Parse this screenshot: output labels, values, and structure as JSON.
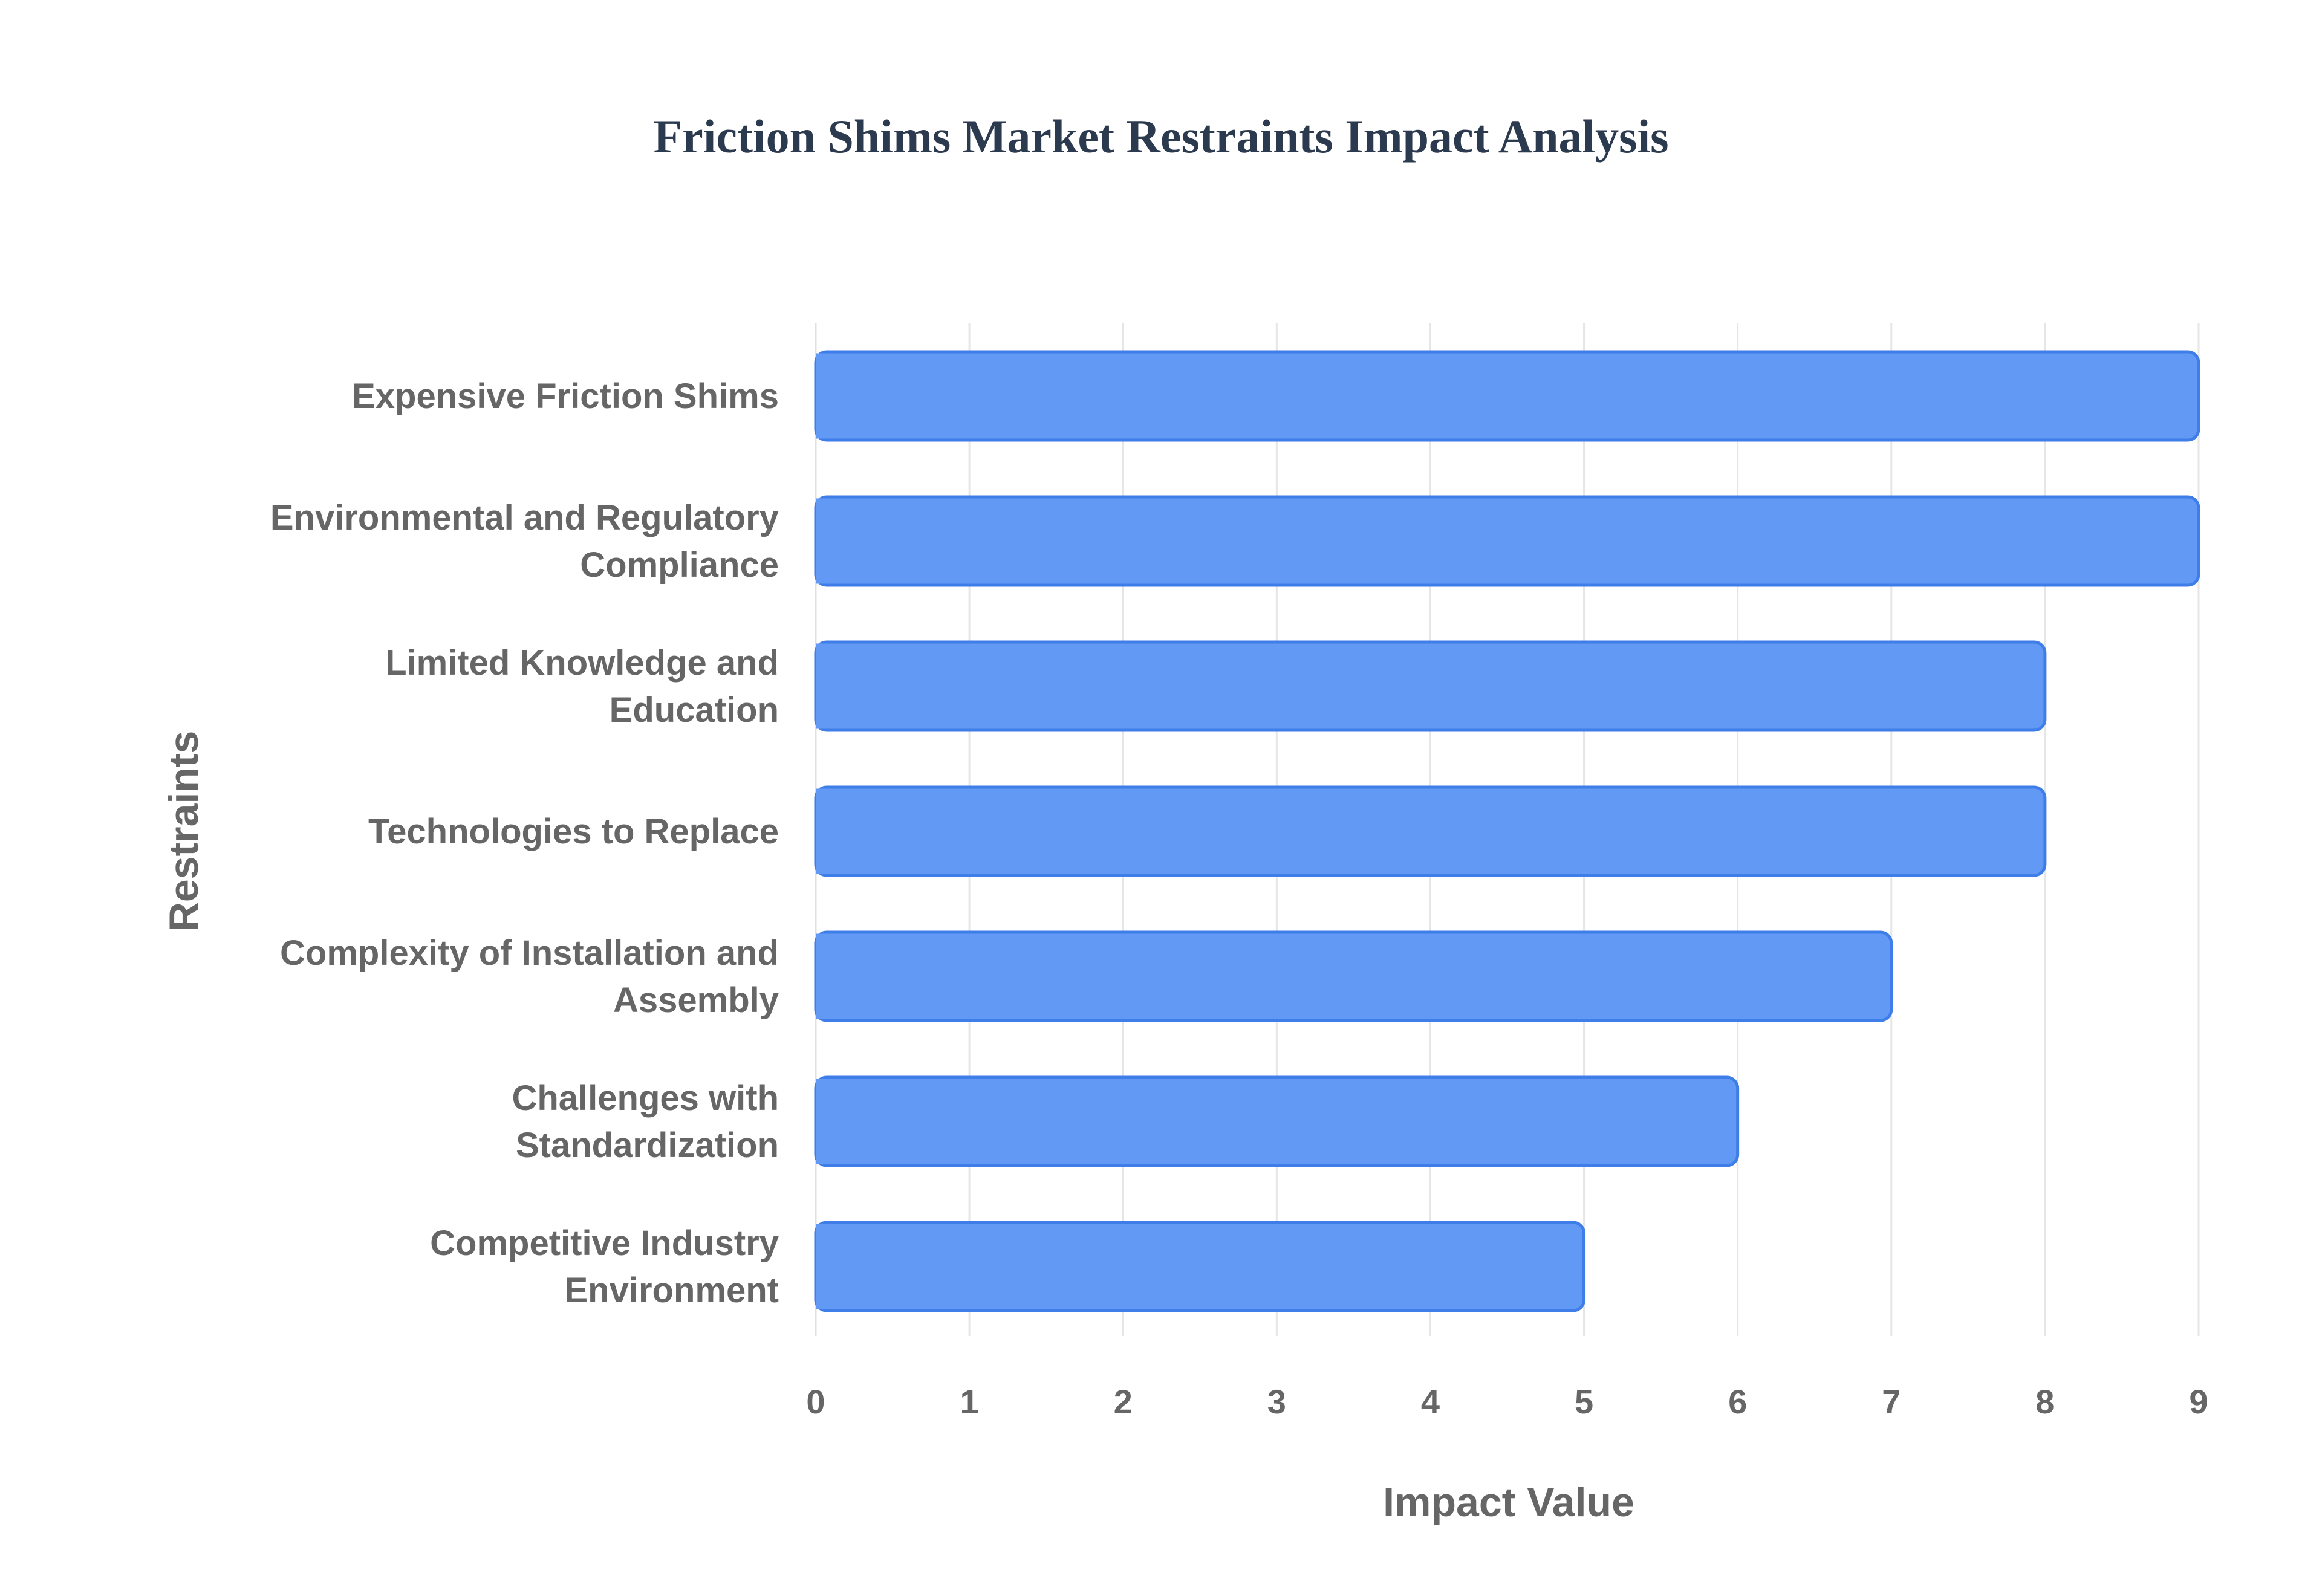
{
  "chart_data": {
    "type": "bar",
    "orientation": "horizontal",
    "title": "Friction Shims Market Restraints Impact Analysis",
    "xlabel": "Impact Value",
    "ylabel": "Restraints",
    "categories": [
      [
        "Expensive Friction Shims"
      ],
      [
        "Environmental and Regulatory",
        "Compliance"
      ],
      [
        "Limited Knowledge and",
        "Education"
      ],
      [
        "Technologies to Replace"
      ],
      [
        "Complexity of Installation and",
        "Assembly"
      ],
      [
        "Challenges with",
        "Standardization"
      ],
      [
        "Competitive Industry",
        "Environment"
      ]
    ],
    "values": [
      9,
      9,
      8,
      8,
      7,
      6,
      5
    ],
    "xlim": [
      0,
      9
    ],
    "xticks": [
      "0",
      "1",
      "2",
      "3",
      "4",
      "5",
      "6",
      "7",
      "8",
      "9"
    ],
    "grid": true,
    "legend": "none",
    "colors": {
      "bar_fill": "#6199f5",
      "bar_stroke": "#3f7ee8"
    }
  }
}
